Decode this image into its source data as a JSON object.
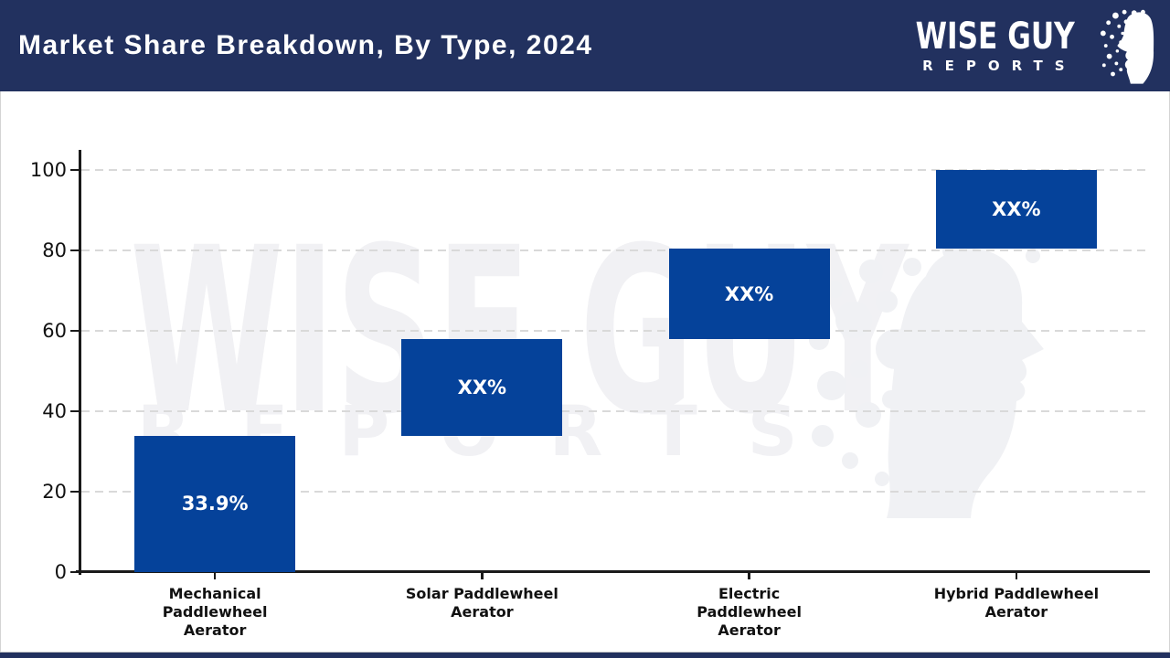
{
  "header": {
    "title": "Market Share Breakdown, By Type, 2024",
    "logo": {
      "wordmark": "WISE GUY",
      "subtitle": "REPORTS"
    }
  },
  "watermark": {
    "wordmark": "WISE GUY",
    "subtitle": "REPORTS"
  },
  "theme": {
    "header_bg": "#22315f",
    "footer_bg": "#22315f",
    "bar_color": "#05429a",
    "bar_label_color": "#ffffff",
    "axis_color": "#1a1a1a",
    "gridline_color": "#d9d9d9",
    "watermark_color": "#f1f1f4"
  },
  "chart_data": {
    "type": "bar",
    "subtype": "waterfall-market-share",
    "title": "Market Share Breakdown, By Type, 2024",
    "categories": [
      "Mechanical Paddlewheel Aerator",
      "Solar Paddlewheel Aerator",
      "Electric Paddlewheel Aerator",
      "Hybrid Paddlewheel Aerator"
    ],
    "categories_lines": [
      [
        "Mechanical",
        "Paddlewheel",
        "Aerator"
      ],
      [
        "Solar Paddlewheel",
        "Aerator"
      ],
      [
        "Electric",
        "Paddlewheel",
        "Aerator"
      ],
      [
        "Hybrid Paddlewheel",
        "Aerator"
      ]
    ],
    "segments": [
      {
        "category": "Mechanical Paddlewheel Aerator",
        "start": 0,
        "end": 33.9,
        "label": "33.9%"
      },
      {
        "category": "Solar Paddlewheel Aerator",
        "start": 33.9,
        "end": 57.9,
        "label": "XX%"
      },
      {
        "category": "Electric Paddlewheel Aerator",
        "start": 57.9,
        "end": 80.4,
        "label": "XX%"
      },
      {
        "category": "Hybrid Paddlewheel Aerator",
        "start": 80.4,
        "end": 100,
        "label": "XX%"
      }
    ],
    "xlabel": "",
    "ylabel": "",
    "ylim": [
      0,
      100
    ],
    "yticks": [
      0,
      20,
      40,
      60,
      80,
      100
    ],
    "grid": "horizontal-dashed",
    "legend": "none"
  }
}
